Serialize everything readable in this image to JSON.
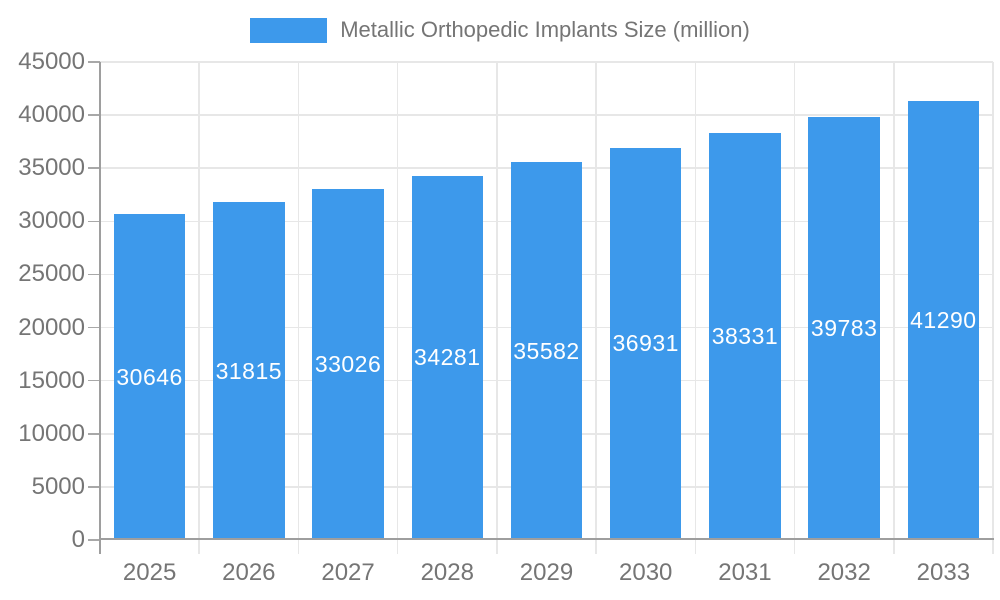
{
  "legend": {
    "label": "Metallic Orthopedic Implants Size (million)"
  },
  "chart_data": {
    "type": "bar",
    "title": "",
    "legend_entries": [
      "Metallic Orthopedic Implants Size (million)"
    ],
    "legend_position": "top",
    "categories": [
      "2025",
      "2026",
      "2027",
      "2028",
      "2029",
      "2030",
      "2031",
      "2032",
      "2033"
    ],
    "values": [
      30646,
      31815,
      33026,
      34281,
      35582,
      36931,
      38331,
      39783,
      41290
    ],
    "xlabel": "",
    "ylabel": "",
    "ylim": [
      0,
      45000
    ],
    "yticks": [
      0,
      5000,
      10000,
      15000,
      20000,
      25000,
      30000,
      35000,
      40000,
      45000
    ],
    "grid": true,
    "value_labels_shown": true
  },
  "colors": {
    "accent": "#3D99EB",
    "grid": "#E7E7E7",
    "axis": "#9E9E9E",
    "tick": "#A8A8A8",
    "text": "#757575",
    "value_label": "#FFFFFF",
    "background": "#FFFFFF"
  }
}
